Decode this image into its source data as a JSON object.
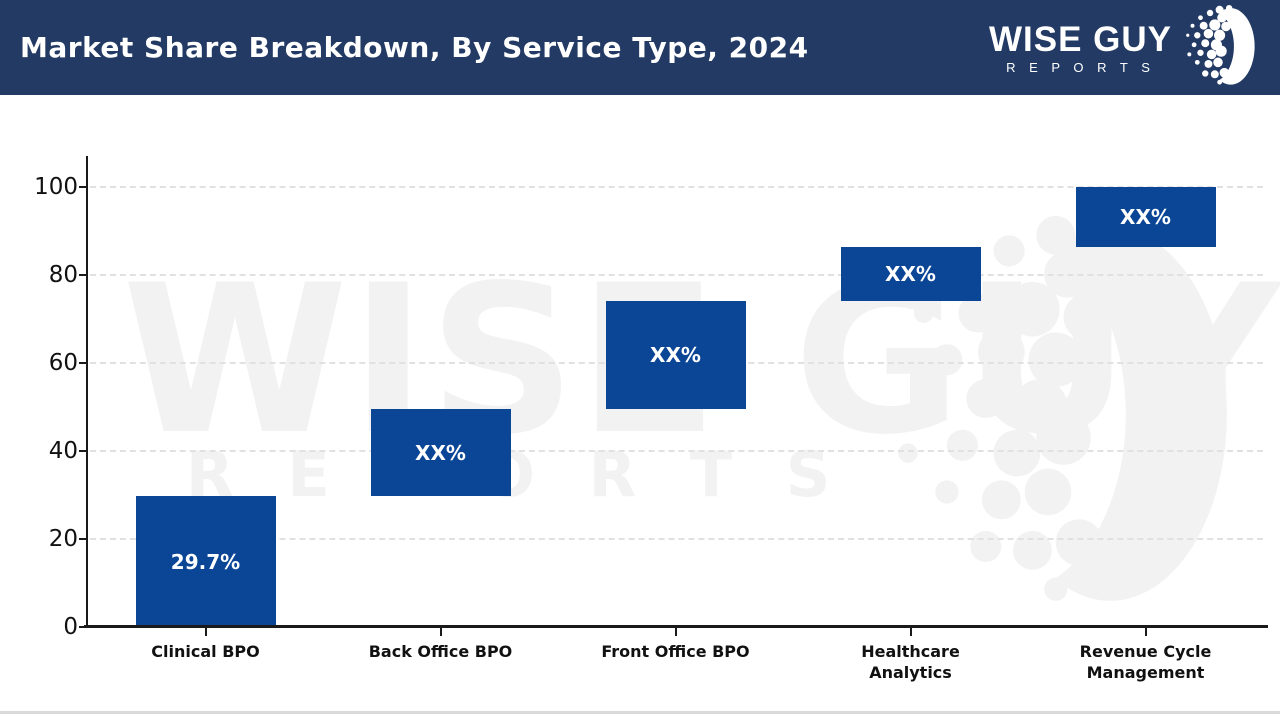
{
  "header": {
    "title": "Market Share Breakdown, By Service Type, 2024",
    "bg_color": "#223a64",
    "logo": {
      "name": "WISE GUY",
      "tagline": "R E P O R T S"
    }
  },
  "watermark": {
    "line1": "WISE GUY",
    "line2": "R E P O R T S"
  },
  "chart_data": {
    "type": "bar",
    "subtype": "waterfall",
    "title": "Market Share Breakdown, By Service Type, 2024",
    "categories": [
      "Clinical BPO",
      "Back Office BPO",
      "Front Office BPO",
      "Healthcare Analytics",
      "Revenue Cycle Management"
    ],
    "segments": [
      {
        "category": "Clinical BPO",
        "start": 0,
        "end": 29.7,
        "label": "29.7%"
      },
      {
        "category": "Back Office BPO",
        "start": 29.7,
        "end": 49.5,
        "label": "XX%"
      },
      {
        "category": "Front Office BPO",
        "start": 49.5,
        "end": 74.2,
        "label": "XX%"
      },
      {
        "category": "Healthcare Analytics",
        "start": 74.2,
        "end": 86.3,
        "label": "XX%"
      },
      {
        "category": "Revenue Cycle Management",
        "start": 86.3,
        "end": 100,
        "label": "XX%"
      }
    ],
    "yticks": [
      0,
      20,
      40,
      60,
      80,
      100
    ],
    "ylim": [
      0,
      106
    ],
    "xlabel": "",
    "ylabel": "",
    "legend": null,
    "grid": {
      "axis": "y",
      "style": "dashed",
      "color": "#e1e1e1"
    },
    "bar_color": "#0a4596",
    "bar_label_color": "#ffffff",
    "axis_color": "#1a1a1a"
  }
}
